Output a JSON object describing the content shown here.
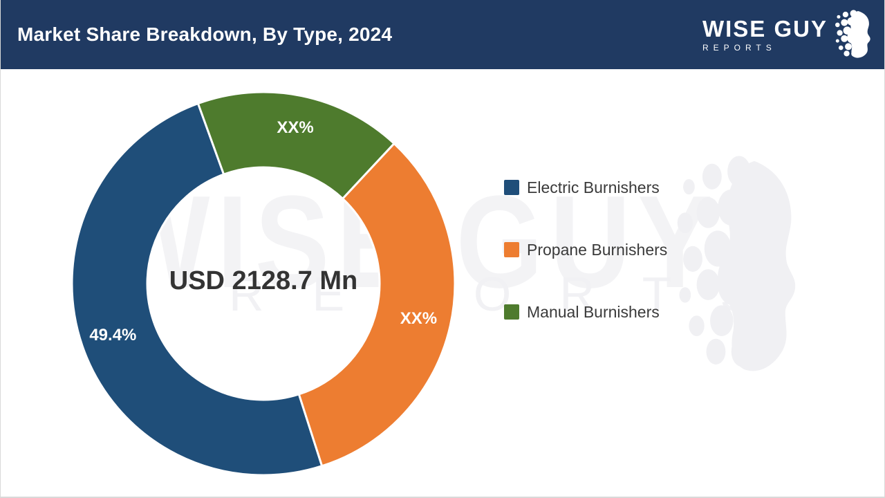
{
  "header": {
    "title": "Market Share Breakdown, By Type, 2024",
    "logo": {
      "wordmark": "WISE GUY",
      "subtext": "REPORTS"
    }
  },
  "watermark": {
    "wordmark": "WISE GUY",
    "subtext": "REPORTS"
  },
  "chart_data": {
    "type": "pie",
    "subtype": "donut",
    "title": "Market Share Breakdown, By Type, 2024",
    "center_label": "USD 2128.7 Mn",
    "categories": [
      "Electric Burnishers",
      "Propane Burnishers",
      "Manual Burnishers"
    ],
    "values": [
      49.4,
      33.1,
      17.5
    ],
    "display_labels": [
      "49.4%",
      "XX%",
      "XX%"
    ],
    "colors": [
      "#1F4E79",
      "#ED7D31",
      "#4E7B2D"
    ],
    "legend_position": "right",
    "start_angle_deg": 162.2,
    "draw_order": [
      0,
      2,
      1
    ],
    "outer_radius": 277,
    "inner_radius": 168,
    "label_radius": 230
  },
  "colors": {
    "header_bg": "#203A62",
    "label_on_slice": "#FFFFFF",
    "center_text": "#333333",
    "watermark": "#F3F3F5"
  }
}
